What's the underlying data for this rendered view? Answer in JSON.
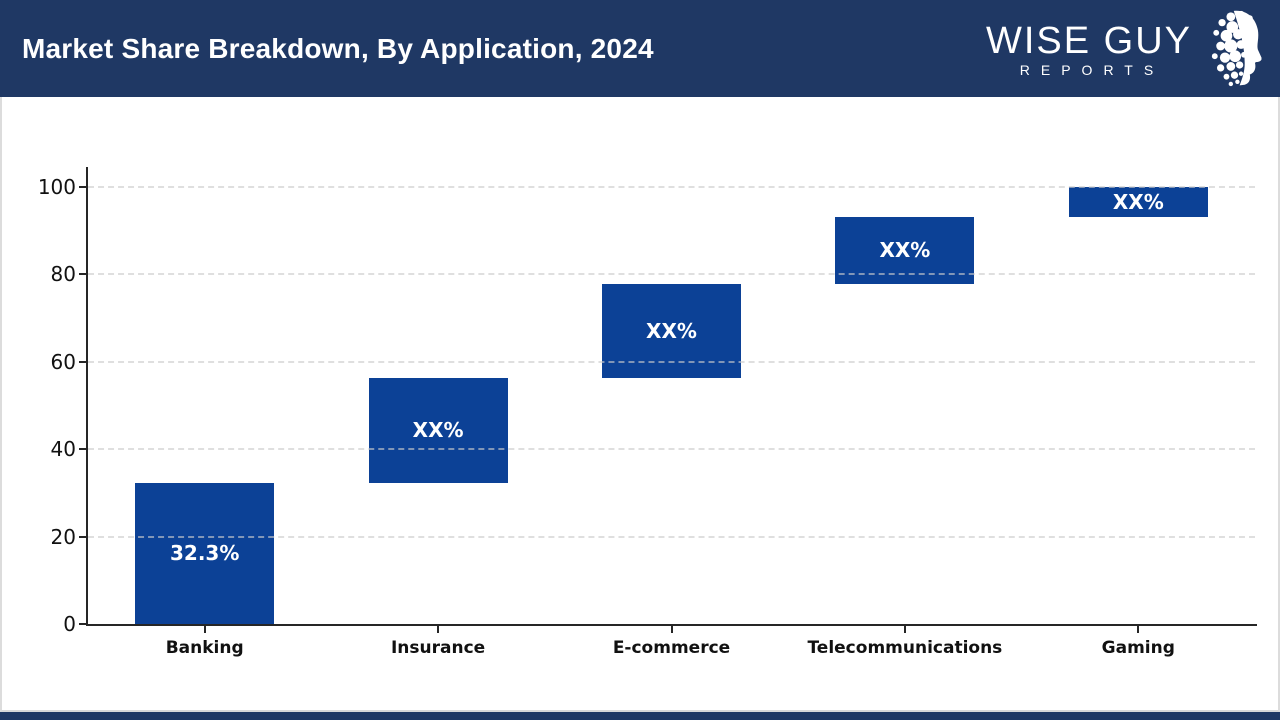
{
  "header": {
    "title": "Market Share Breakdown, By Application, 2024",
    "logo": {
      "line1": "WISE GUY",
      "line2": "REPORTS"
    }
  },
  "watermark": {
    "line1": "WISE GUY",
    "line2": "REPORTS"
  },
  "colors": {
    "header_bg": "#1F3864",
    "bar_blue": "#0C4196",
    "axis": "#262626",
    "footer_bar": "#1F3864"
  },
  "chart_data": {
    "type": "bar",
    "subtype": "waterfall",
    "title": "Market Share Breakdown, By Application, 2024",
    "categories": [
      "Banking",
      "Insurance",
      "E-commerce",
      "Telecommunications",
      "Gaming"
    ],
    "segments": [
      {
        "category": "Banking",
        "label": "32.3%",
        "start": 0,
        "end": 32.3
      },
      {
        "category": "Insurance",
        "label": "XX%",
        "start": 32.3,
        "end": 56.3
      },
      {
        "category": "E-commerce",
        "label": "XX%",
        "start": 56.3,
        "end": 77.9
      },
      {
        "category": "Telecommunications",
        "label": "XX%",
        "start": 77.9,
        "end": 93.1
      },
      {
        "category": "Gaming",
        "label": "XX%",
        "start": 93.1,
        "end": 100
      }
    ],
    "ylim": [
      0,
      100
    ],
    "yticks": [
      0,
      20,
      40,
      60,
      80,
      100
    ],
    "xlabel": "",
    "ylabel": "",
    "grid": "dashed-horizontal",
    "legend": "none",
    "bar_color": "#0C4196",
    "bar_label_color": "#ffffff"
  }
}
